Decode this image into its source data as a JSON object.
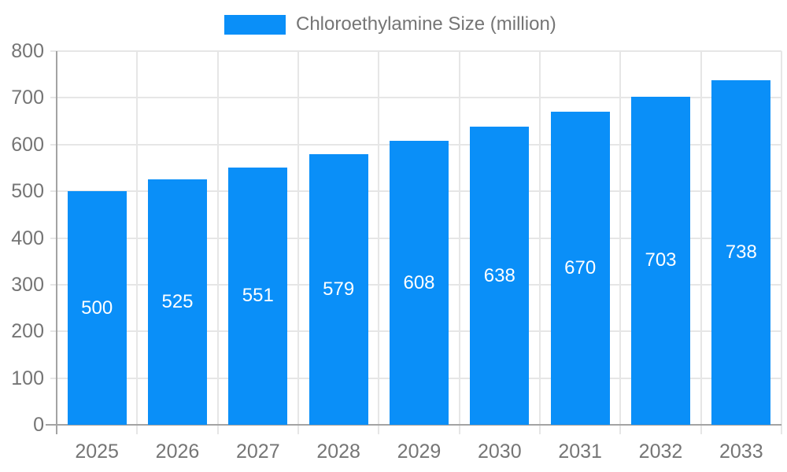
{
  "chart_data": {
    "type": "bar",
    "title": "Chloroethylamine Size (million)",
    "legend": {
      "label": "Chloroethylamine Size (million)",
      "position": "top"
    },
    "categories": [
      "2025",
      "2026",
      "2027",
      "2028",
      "2029",
      "2030",
      "2031",
      "2032",
      "2033"
    ],
    "values": [
      500,
      525,
      551,
      579,
      608,
      638,
      670,
      703,
      738
    ],
    "series": [
      {
        "name": "Chloroethylamine Size (million)",
        "values": [
          500,
          525,
          551,
          579,
          608,
          638,
          670,
          703,
          738
        ]
      }
    ],
    "xlabel": "",
    "ylabel": "",
    "ylim": [
      0,
      800
    ],
    "ytick_step": 100,
    "ytick_labels": [
      "0",
      "100",
      "200",
      "300",
      "400",
      "500",
      "600",
      "700",
      "800"
    ],
    "grid": true,
    "value_labels": "inside-center",
    "colors": {
      "bar": "#0a8ff8",
      "bar_label_text": "#ffffff",
      "gridline": "#e6e6e6",
      "axis_line": "#a3a3a3",
      "tick_text": "#757575",
      "background": "#ffffff"
    }
  }
}
